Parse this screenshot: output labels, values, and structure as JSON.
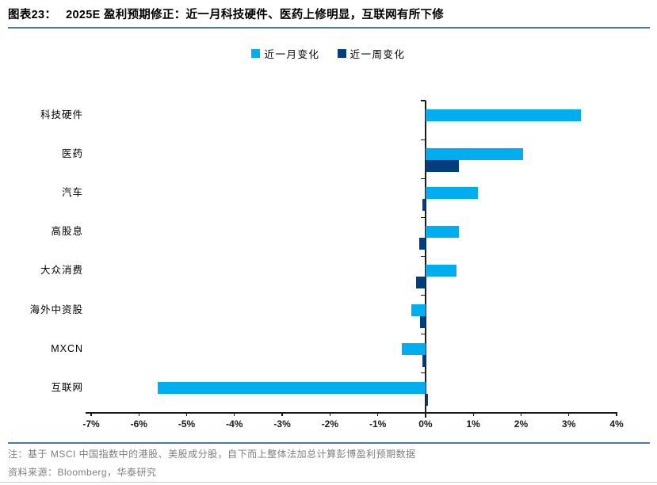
{
  "title": {
    "label": "图表23：",
    "text": "2025E 盈利预期修正：近一月科技硬件、医药上修明显，互联网有所下修"
  },
  "chart_data": {
    "type": "bar",
    "orientation": "horizontal",
    "title": "2025E 盈利预期修正",
    "categories": [
      "科技硬件",
      "医药",
      "汽车",
      "高股息",
      "大众消费",
      "海外中资股",
      "MXCN",
      "互联网"
    ],
    "series": [
      {
        "name": "近一月变化",
        "color": "#00AEEF",
        "values": [
          3.25,
          2.05,
          1.1,
          0.7,
          0.65,
          -0.3,
          -0.5,
          -5.6
        ]
      },
      {
        "name": "近一周变化",
        "color": "#003E7E",
        "values": [
          0,
          0.7,
          -0.06,
          -0.13,
          -0.2,
          -0.11,
          -0.07,
          0.05
        ]
      }
    ],
    "xlim": [
      -7,
      4
    ],
    "x_ticks": [
      "-7%",
      "-6%",
      "-5%",
      "-4%",
      "-3%",
      "-2%",
      "-1%",
      "0%",
      "1%",
      "2%",
      "3%",
      "4%"
    ],
    "unit": "%",
    "grid": false,
    "legend_position": "top-center"
  },
  "footer": {
    "note": "注：基于 MSCI 中国指数中的港股、美股成分股，自下而上整体法加总计算彭博盈利预期数据",
    "source": "资料来源：Bloomberg，华泰研究"
  },
  "colors": {
    "bar_month": "#00AEEF",
    "bar_week": "#003E7E",
    "rule_blue": "#4A7BA6",
    "axis": "#1A1A1A",
    "footnote_gray": "#7F7F7F",
    "bottom_rule_gray": "#CCCCCC"
  }
}
